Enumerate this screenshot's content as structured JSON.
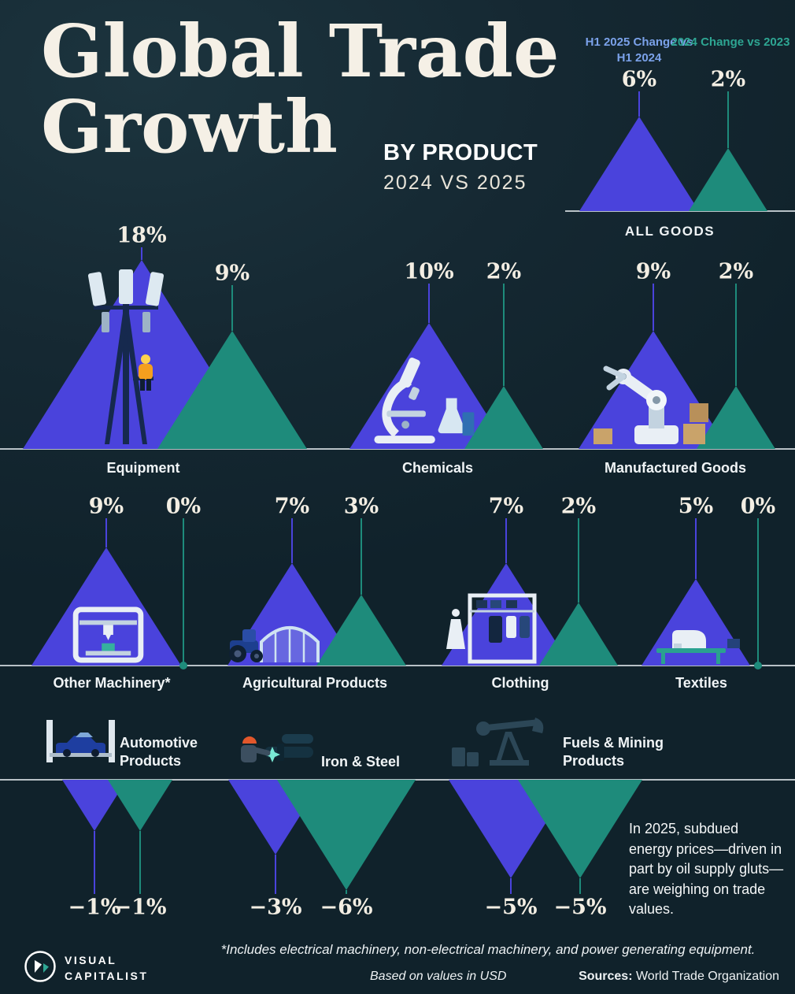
{
  "header": {
    "title_line1": "Global Trade",
    "title_line2": "Growth",
    "subtitle_line1": "BY PRODUCT",
    "subtitle_line2": "2024 VS 2025"
  },
  "colors": {
    "background": "#152832",
    "series1_blue": "#4a43dc",
    "series2_teal": "#1e8b7b",
    "legend1_text": "#7ba2ea",
    "legend2_text": "#2ea693",
    "percent_text": "#f3eee3"
  },
  "chart_data": {
    "type": "bar",
    "title": "Global Trade Growth by Product, 2024 vs 2025",
    "unit": "%",
    "legend_position": "top-right",
    "series": [
      {
        "name": "H1 2025 Change vs H1 2024",
        "color": "#4a43dc",
        "values": [
          6,
          18,
          10,
          9,
          9,
          7,
          7,
          5,
          -1,
          -3,
          -5
        ]
      },
      {
        "name": "2024 Change vs 2023",
        "color": "#1e8b7b",
        "values": [
          2,
          9,
          2,
          2,
          0,
          3,
          2,
          0,
          -1,
          -6,
          -5
        ]
      }
    ],
    "categories": [
      "All Goods",
      "Equipment",
      "Chemicals",
      "Manufactured Goods",
      "Other Machinery*",
      "Agricultural Products",
      "Clothing",
      "Textiles",
      "Automotive Products",
      "Iron & Steel",
      "Fuels & Mining Products"
    ],
    "category_icons": [
      "none",
      "telecom-tower-icon",
      "microscope-icon",
      "robotic-arm-icon",
      "machinery-icon",
      "greenhouse-tractor-icon",
      "clothing-rack-icon",
      "sewing-machine-icon",
      "car-lift-icon",
      "steelworker-icon",
      "oil-pump-icon"
    ]
  },
  "annotation": "In 2025, subdued energy prices—driven in part by oil supply gluts—are weighing on trade values.",
  "footnote": "*Includes electrical machinery, non-electrical machinery, and power generating equipment.",
  "footer": {
    "basis": "Based on values in USD",
    "sources_label": "Sources:",
    "sources_value": "World Trade Organization"
  },
  "logo": {
    "line1": "VISUAL",
    "line2": "CAPITALIST"
  }
}
